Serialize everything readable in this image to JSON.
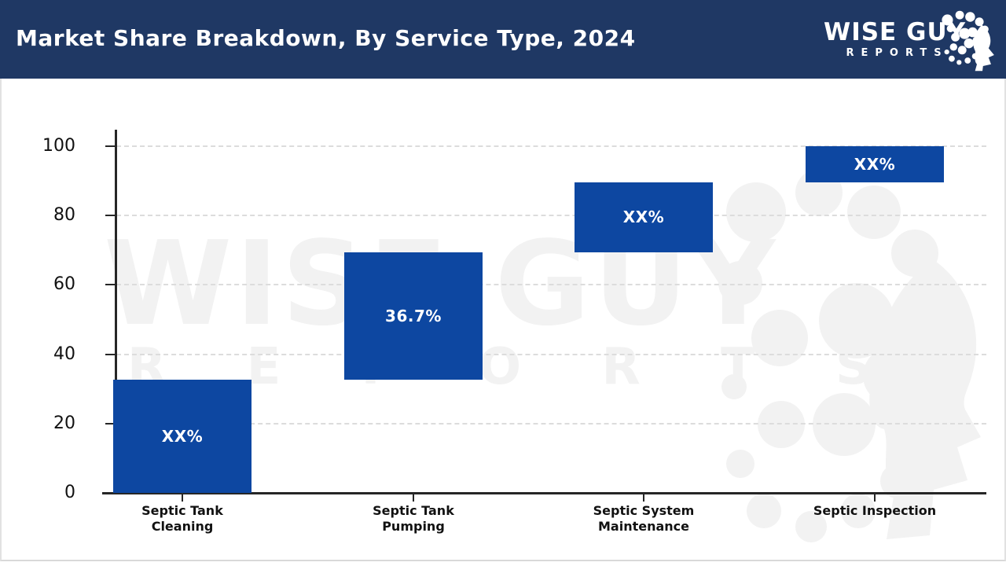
{
  "header": {
    "title": "Market Share Breakdown, By Service Type, 2024",
    "bg_color": "#1f3864",
    "text_color": "#ffffff"
  },
  "logo": {
    "line1": "WISE GUY",
    "line2": "REPORTS"
  },
  "watermark": {
    "line1": "WISE GUY",
    "line2": "R E P O R T S"
  },
  "chart_data": {
    "type": "bar",
    "variant": "waterfall",
    "title": "Market Share Breakdown, By Service Type, 2024",
    "categories": [
      "Septic Tank Cleaning",
      "Septic Tank Pumping",
      "Septic System Maintenance",
      "Septic Inspection"
    ],
    "category_label_lines": [
      [
        "Septic Tank",
        "Cleaning"
      ],
      [
        "Septic Tank",
        "Pumping"
      ],
      [
        "Septic System",
        "Maintenance"
      ],
      [
        "Septic Inspection"
      ]
    ],
    "segments": [
      {
        "category": "Septic Tank Cleaning",
        "start": 0,
        "end": 32.7,
        "value": 32.7,
        "label": "XX%"
      },
      {
        "category": "Septic Tank Pumping",
        "start": 32.7,
        "end": 69.4,
        "value": 36.7,
        "label": "36.7%"
      },
      {
        "category": "Septic System Maintenance",
        "start": 69.4,
        "end": 89.6,
        "value": 20.2,
        "label": "XX%"
      },
      {
        "category": "Septic Inspection",
        "start": 89.6,
        "end": 100,
        "value": 10.4,
        "label": "XX%"
      }
    ],
    "xlabel": "",
    "ylabel": "",
    "ylim": [
      0,
      100
    ],
    "yticks": [
      0,
      20,
      40,
      60,
      80,
      100
    ],
    "grid": "horizontal dashed",
    "legend": "none",
    "bar_color": "#0d47a1",
    "bar_label_color": "#ffffff"
  }
}
